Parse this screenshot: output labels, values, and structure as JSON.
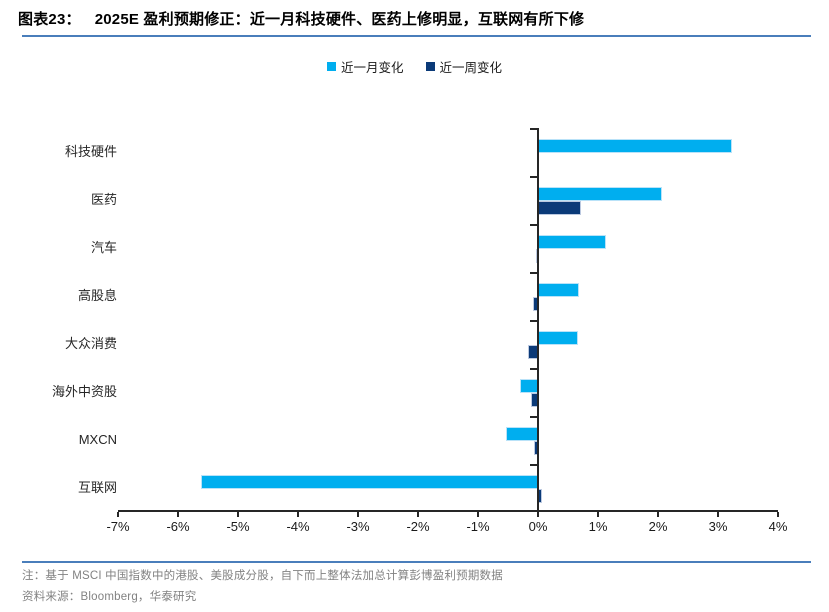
{
  "title": {
    "prefix": "图表23：",
    "text": "2025E 盈利预期修正：近一月科技硬件、医药上修明显，互联网有所下修"
  },
  "legend": [
    {
      "label": "近一月变化",
      "color": "#00AEEF"
    },
    {
      "label": "近一周变化",
      "color": "#0B3A78"
    }
  ],
  "colors": {
    "month_bar": "#00AEEF",
    "week_bar": "#0B3A78",
    "axis": "#262626",
    "rule": "#4a7ebb",
    "footer_text": "#828282"
  },
  "chart_data": {
    "type": "bar",
    "orientation": "horizontal",
    "title": "2025E 盈利预期修正",
    "categories": [
      "科技硬件",
      "医药",
      "汽车",
      "高股息",
      "大众消费",
      "海外中资股",
      "MXCN",
      "互联网"
    ],
    "series": [
      {
        "name": "近一月变化",
        "color": "#00AEEF",
        "values": [
          3.24,
          2.06,
          1.13,
          0.68,
          0.67,
          -0.3,
          -0.53,
          -5.61
        ]
      },
      {
        "name": "近一周变化",
        "color": "#0B3A78",
        "values": [
          0.0,
          0.71,
          -0.04,
          -0.08,
          -0.17,
          -0.11,
          -0.07,
          0.06
        ]
      }
    ],
    "unit": "%",
    "xlim": [
      -7,
      4
    ],
    "x_tick_values": [
      -7,
      -6,
      -5,
      -4,
      -3,
      -2,
      -1,
      0,
      1,
      2,
      3,
      4
    ],
    "x_tick_labels": [
      "-7%",
      "-6%",
      "-5%",
      "-4%",
      "-3%",
      "-2%",
      "-1%",
      "0%",
      "1%",
      "2%",
      "3%",
      "4%"
    ],
    "legend_position": "top-center",
    "grid": false
  },
  "footer": {
    "note": "注：基于 MSCI 中国指数中的港股、美股成分股，自下而上整体法加总计算彭博盈利预期数据",
    "source": "资料来源：Bloomberg，华泰研究"
  }
}
